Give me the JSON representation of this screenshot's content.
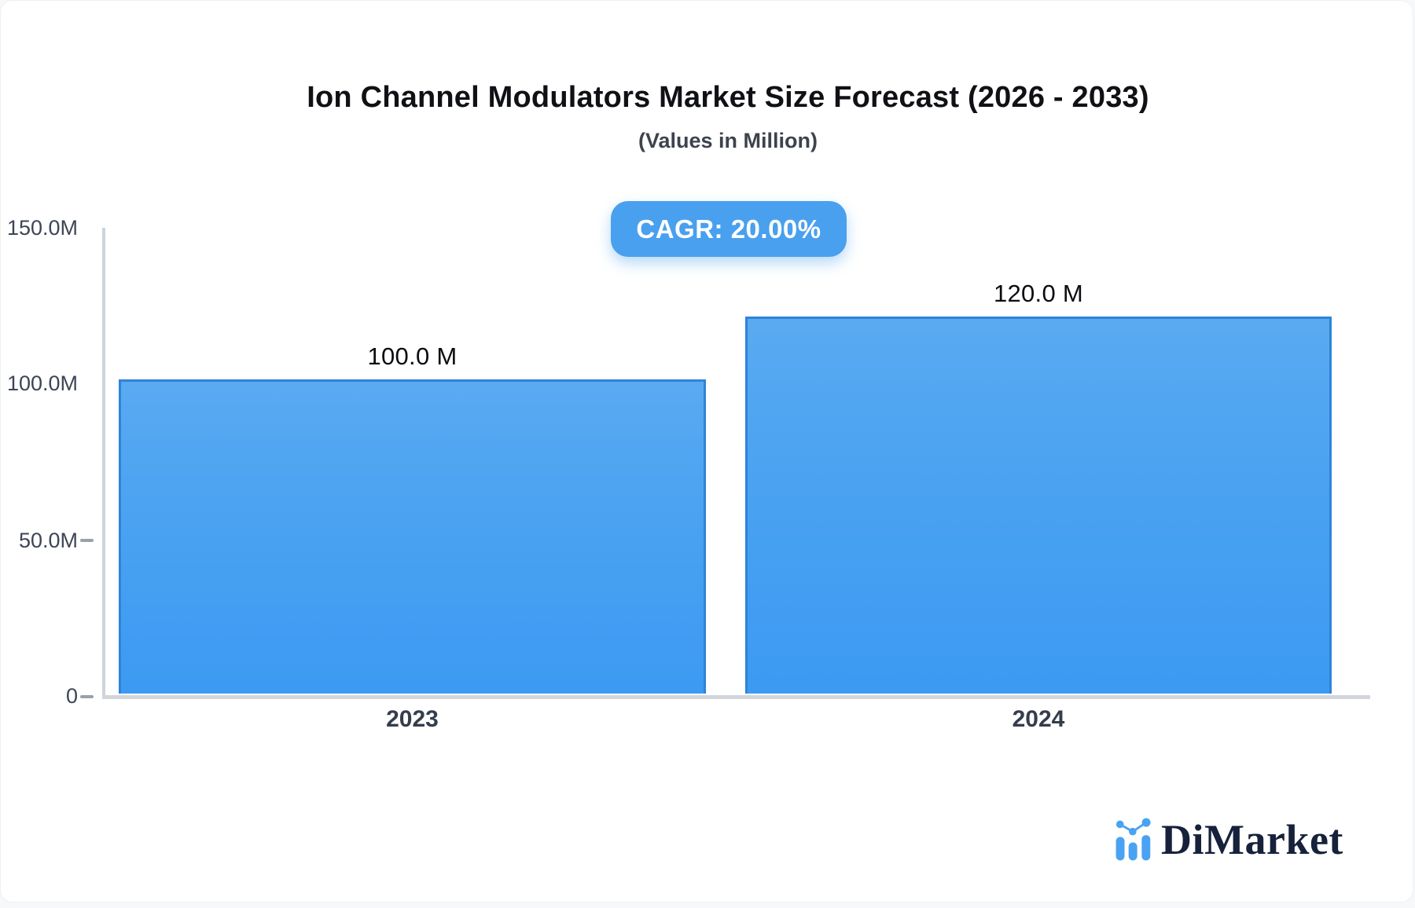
{
  "header": {
    "title": "Ion Channel Modulators Market Size Forecast (2026 - 2033)",
    "subtitle": "(Values in Million)",
    "cagr_badge": "CAGR: 20.00%"
  },
  "chart_data": {
    "type": "bar",
    "title": "Ion Channel Modulators Market Size Forecast (2026 - 2033)",
    "subtitle": "(Values in Million)",
    "unit": "Million",
    "cagr_percent": 20.0,
    "categories": [
      "2023",
      "2024"
    ],
    "values": [
      100.0,
      120.0
    ],
    "value_labels": [
      "100.0 M",
      "120.0 M"
    ],
    "xlabel": "",
    "ylabel": "",
    "ylim": [
      0,
      150
    ],
    "ytick_labels": [
      "150.0M",
      "100.0M",
      "50.0M",
      "0"
    ],
    "grid": false,
    "legend": false,
    "bar_fill_top": "#59aaf1",
    "bar_fill_bottom": "#3c9af2",
    "bar_border": "#2e84d8"
  },
  "footer": {
    "brand": "DiMarket"
  },
  "colors": {
    "accent_blue": "#49a0ee",
    "axis_line": "#d2d6dc",
    "tick": "#9aa1ad",
    "y_label_text": "#3d4555",
    "x_label_text": "#353d4c",
    "title_text": "#0f1115",
    "logo_navy": "#16213b",
    "logo_blue": "#4aa2f2"
  }
}
